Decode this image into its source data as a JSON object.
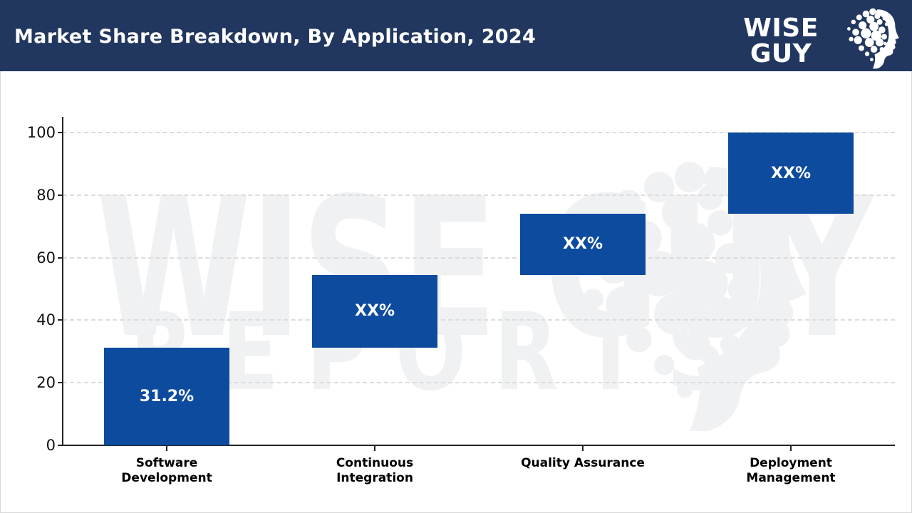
{
  "header": {
    "title": "Market Share Breakdown, By Application, 2024",
    "background_color": "#21375f",
    "logo": {
      "line1": "WISE GUY",
      "line2": "REPORTS"
    }
  },
  "watermark": {
    "line1": "WISE GUY",
    "line2": "REPORTS",
    "color": "#f0f1f3"
  },
  "chart_data": {
    "type": "bar",
    "subtype": "waterfall",
    "title": "Market Share Breakdown, By Application, 2024",
    "xlabel": "",
    "ylabel": "",
    "ylim": [
      0,
      100
    ],
    "yticks": [
      0,
      20,
      40,
      60,
      80,
      100
    ],
    "grid": "horizontal-dashed",
    "legend": "none",
    "bar_color": "#0c4b9e",
    "bar_label_color": "#ffffff",
    "axis_color": "#262626",
    "grid_color": "#dcdcdc",
    "categories": [
      "Software Development",
      "Continuous Integration",
      "Quality Assurance",
      "Deployment Management"
    ],
    "category_lines": [
      [
        "Software",
        "Development"
      ],
      [
        "Continuous",
        "Integration"
      ],
      [
        "Quality Assurance"
      ],
      [
        "Deployment",
        "Management"
      ]
    ],
    "segments": [
      {
        "category": "Software Development",
        "start": 0,
        "end": 31.2,
        "label": "31.2%"
      },
      {
        "category": "Continuous Integration",
        "start": 31.2,
        "end": 54.5,
        "label": "XX%"
      },
      {
        "category": "Quality Assurance",
        "start": 54.5,
        "end": 74,
        "label": "XX%"
      },
      {
        "category": "Deployment Management",
        "start": 74,
        "end": 100,
        "label": "XX%"
      }
    ]
  }
}
